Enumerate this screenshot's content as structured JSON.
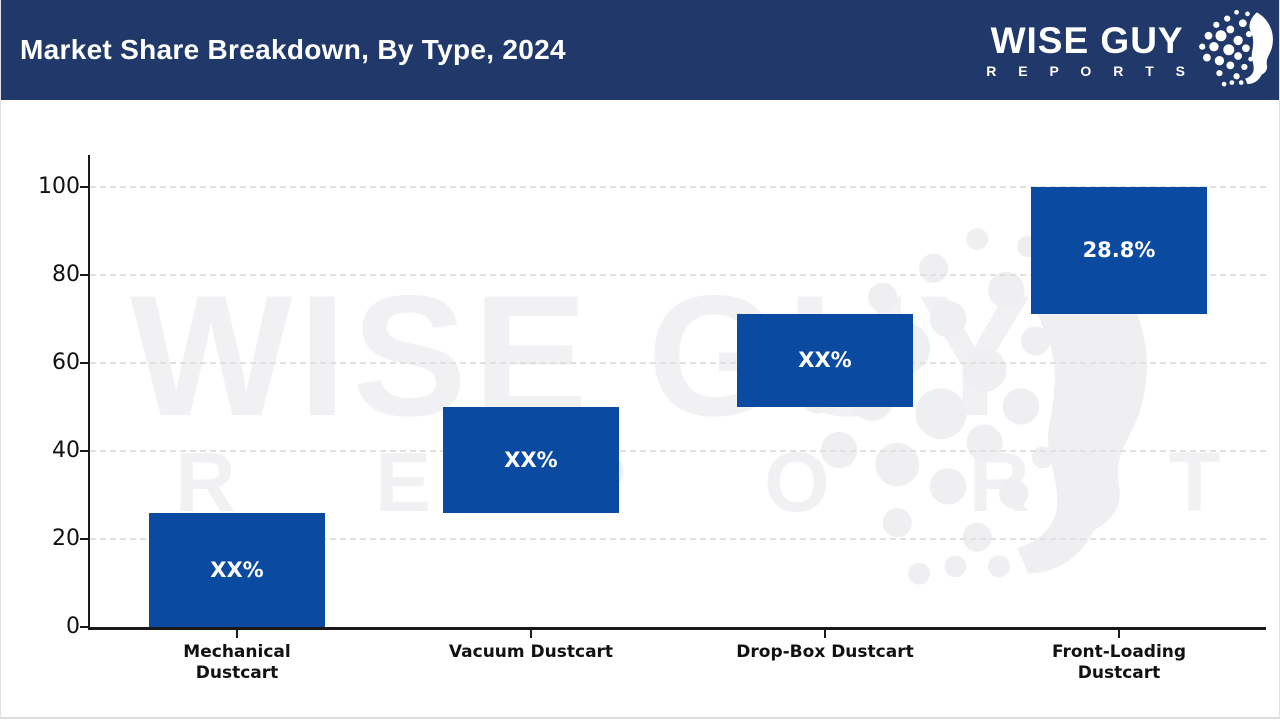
{
  "header": {
    "title": "Market Share Breakdown, By Type, 2024",
    "logo": {
      "name": "WISE GUY",
      "subname": "R E P O R T S"
    }
  },
  "watermark": {
    "big_text": "WISE GUY",
    "reports_text": "R E P O R T S"
  },
  "colors": {
    "header_bg": "#21386b",
    "bar_fill": "#0b4aa1",
    "bar_label_text": "#ffffff",
    "gridline": "#e0e0e0",
    "axis": "#1a1a1a",
    "watermark": "#f1f1f4",
    "title_text": "#ffffff"
  },
  "chart_data": {
    "type": "bar",
    "variant": "floating-waterfall",
    "title": "Market Share Breakdown, By Type, 2024",
    "categories": [
      "Mechanical\nDustcart",
      "Vacuum Dustcart",
      "Drop-Box Dustcart",
      "Front-Loading\nDustcart"
    ],
    "bases": [
      0,
      25.9,
      50.0,
      71.2
    ],
    "values": [
      25.9,
      24.1,
      21.2,
      28.8
    ],
    "bar_labels": [
      "XX%",
      "XX%",
      "XX%",
      "28.8%"
    ],
    "xlabel": "",
    "ylabel": "",
    "ylim": [
      0,
      100
    ],
    "yticks": [
      0,
      20,
      40,
      60,
      80,
      100
    ],
    "grid": "dashed-horizontal",
    "legend": "none"
  }
}
